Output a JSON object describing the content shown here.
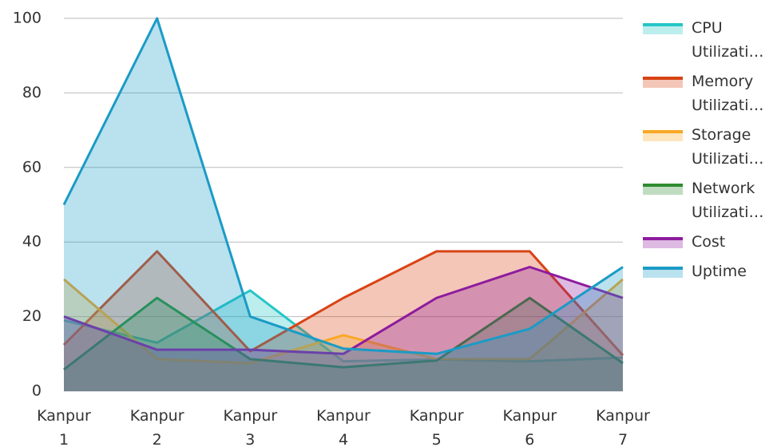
{
  "chart_data": {
    "type": "area",
    "categories": [
      "Kanpur 1",
      "Kanpur 2",
      "Kanpur 3",
      "Kanpur 4",
      "Kanpur 5",
      "Kanpur 6",
      "Kanpur 7"
    ],
    "series": [
      {
        "name": "CPU Utilizati…",
        "color": "#26c6c6",
        "values": [
          19,
          13,
          27,
          8,
          8.5,
          8,
          9
        ]
      },
      {
        "name": "Memory Utilizati…",
        "color": "#d84315",
        "values": [
          12.4,
          37.5,
          10.7,
          25,
          37.5,
          37.5,
          9.6
        ]
      },
      {
        "name": "Storage Utilizati…",
        "color": "#f9a825",
        "values": [
          30,
          8.6,
          7.5,
          15,
          8.6,
          8.6,
          30
        ]
      },
      {
        "name": "Network Utilizati…",
        "color": "#2e8b2e",
        "values": [
          5.8,
          25,
          8.6,
          6.4,
          8.2,
          25,
          7.5
        ]
      },
      {
        "name": "Cost",
        "color": "#8e1b9e",
        "values": [
          20,
          11.1,
          11.1,
          10,
          25,
          33.3,
          25
        ]
      },
      {
        "name": "Uptime",
        "color": "#1a9bc6",
        "values": [
          50,
          100,
          20,
          11.4,
          10,
          16.7,
          33.3
        ]
      }
    ],
    "ylim": [
      0,
      100
    ],
    "yticks": [
      0,
      20,
      40,
      60,
      80,
      100
    ],
    "grid": true
  }
}
